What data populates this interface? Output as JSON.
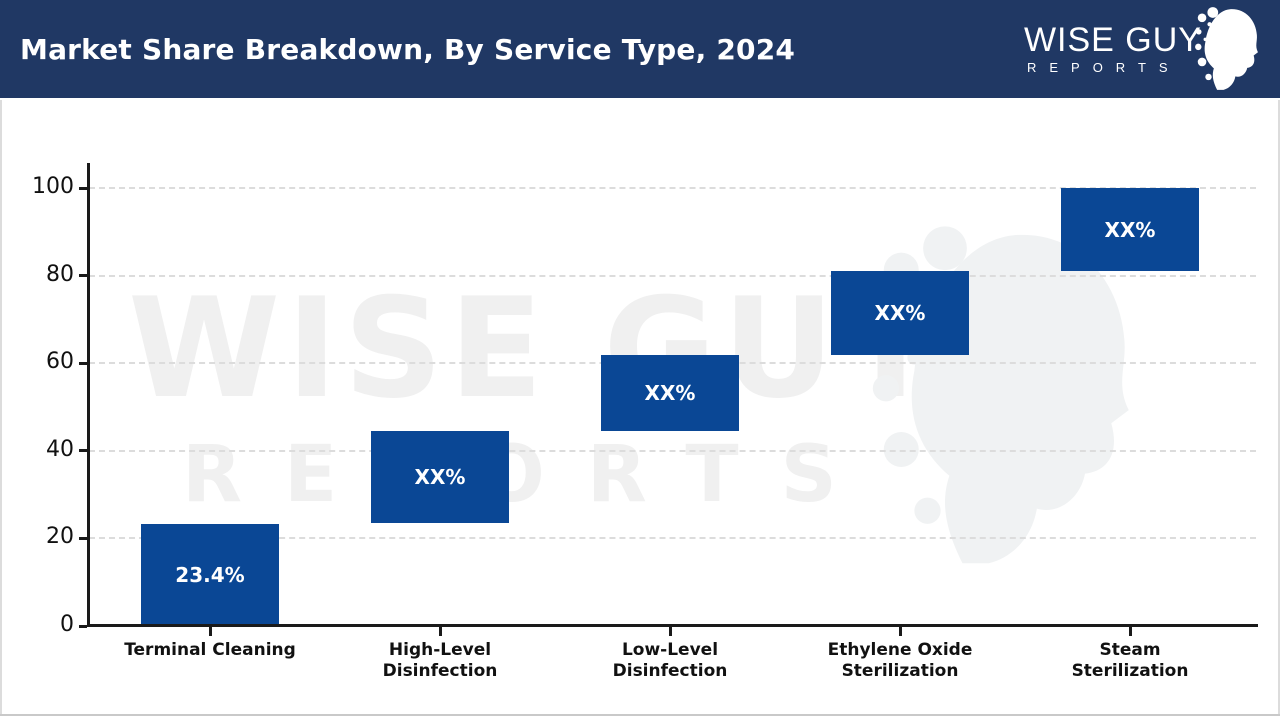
{
  "header": {
    "title": "Market Share Breakdown, By Service Type, 2024",
    "logo": {
      "line1": "WISE GUY",
      "line2": "REPORTS"
    }
  },
  "watermark": {
    "line1": "WISE GUY",
    "line2": "REPORTS"
  },
  "chart_data": {
    "type": "bar",
    "subtype": "waterfall",
    "title": "Market Share Breakdown, By Service Type, 2024",
    "categories": [
      "Terminal Cleaning",
      "High-Level Disinfection",
      "Low-Level Disinfection",
      "Ethylene Oxide Sterilization",
      "Steam Sterilization"
    ],
    "category_lines": [
      [
        "Terminal Cleaning"
      ],
      [
        "High-Level",
        "Disinfection"
      ],
      [
        "Low-Level",
        "Disinfection"
      ],
      [
        "Ethylene Oxide",
        "Sterilization"
      ],
      [
        "Steam",
        "Sterilization"
      ]
    ],
    "segments": [
      {
        "category": "Terminal Cleaning",
        "start": 0,
        "end": 23.4,
        "label": "23.4%"
      },
      {
        "category": "High-Level Disinfection",
        "start": 23.4,
        "end": 44.5,
        "label": "XX%"
      },
      {
        "category": "Low-Level Disinfection",
        "start": 44.5,
        "end": 61.9,
        "label": "XX%"
      },
      {
        "category": "Ethylene Oxide Sterilization",
        "start": 61.9,
        "end": 81.0,
        "label": "XX%"
      },
      {
        "category": "Steam Sterilization",
        "start": 81.0,
        "end": 100,
        "label": "XX%"
      }
    ],
    "ylim": [
      0,
      105
    ],
    "yticks": [
      0,
      20,
      40,
      60,
      80,
      100
    ],
    "grid": "horizontal-dashed",
    "legend": "none",
    "bar_color": "#0a4795",
    "bar_label_color": "#ffffff",
    "axis_color": "#1a1a1a",
    "grid_color": "#dcdcdc",
    "header_color": "#203864",
    "watermark_color": "#f0f0f0"
  }
}
